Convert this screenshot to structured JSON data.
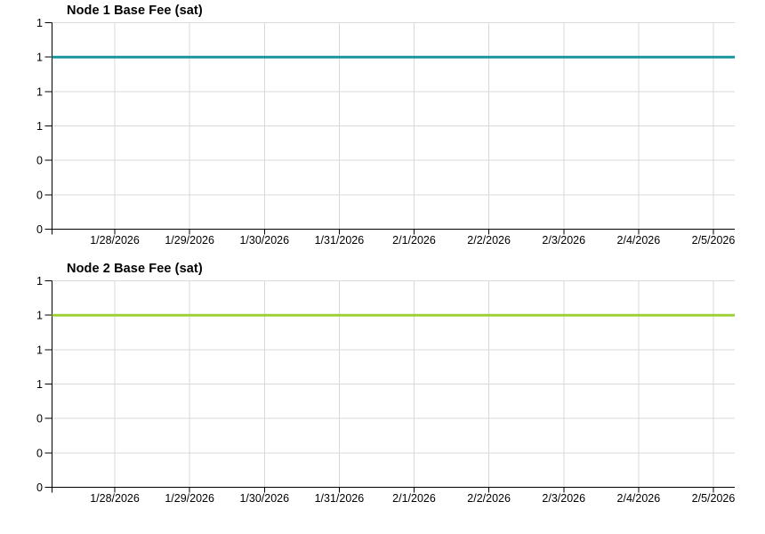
{
  "page": {
    "background": "#ffffff"
  },
  "colors": {
    "axis": "#000000",
    "grid": "#d9d9d9",
    "tick_text": "#000000",
    "title_text": "#000000",
    "node1_line": "#12939B",
    "node2_line": "#9CCF35"
  },
  "chart_data": [
    {
      "type": "line",
      "title": "Node 1 Base Fee (sat)",
      "xlabel": "",
      "ylabel": "",
      "x_tick_labels": [
        "1/28/2026",
        "1/29/2026",
        "1/30/2026",
        "1/31/2026",
        "2/1/2026",
        "2/2/2026",
        "2/3/2026",
        "2/4/2026",
        "2/5/2026"
      ],
      "y_tick_labels": [
        "1",
        "1",
        "1",
        "1",
        "0",
        "0",
        "0"
      ],
      "y_tick_values": [
        1.2,
        1.0,
        0.8,
        0.6,
        0.4,
        0.2,
        0.0
      ],
      "ylim": [
        0,
        1.2
      ],
      "grid": true,
      "legend": "none",
      "series": [
        {
          "name": "Node 1 Base Fee (sat)",
          "color": "#12939B",
          "constant_value": 1,
          "values": [
            1,
            1,
            1,
            1,
            1,
            1,
            1,
            1,
            1
          ]
        }
      ]
    },
    {
      "type": "line",
      "title": "Node 2 Base Fee (sat)",
      "xlabel": "",
      "ylabel": "",
      "x_tick_labels": [
        "1/28/2026",
        "1/29/2026",
        "1/30/2026",
        "1/31/2026",
        "2/1/2026",
        "2/2/2026",
        "2/3/2026",
        "2/4/2026",
        "2/5/2026"
      ],
      "y_tick_labels": [
        "1",
        "1",
        "1",
        "1",
        "0",
        "0",
        "0"
      ],
      "y_tick_values": [
        1.2,
        1.0,
        0.8,
        0.6,
        0.4,
        0.2,
        0.0
      ],
      "ylim": [
        0,
        1.2
      ],
      "grid": true,
      "legend": "none",
      "series": [
        {
          "name": "Node 2 Base Fee (sat)",
          "color": "#9CCF35",
          "constant_value": 1,
          "values": [
            1,
            1,
            1,
            1,
            1,
            1,
            1,
            1,
            1
          ]
        }
      ]
    }
  ]
}
